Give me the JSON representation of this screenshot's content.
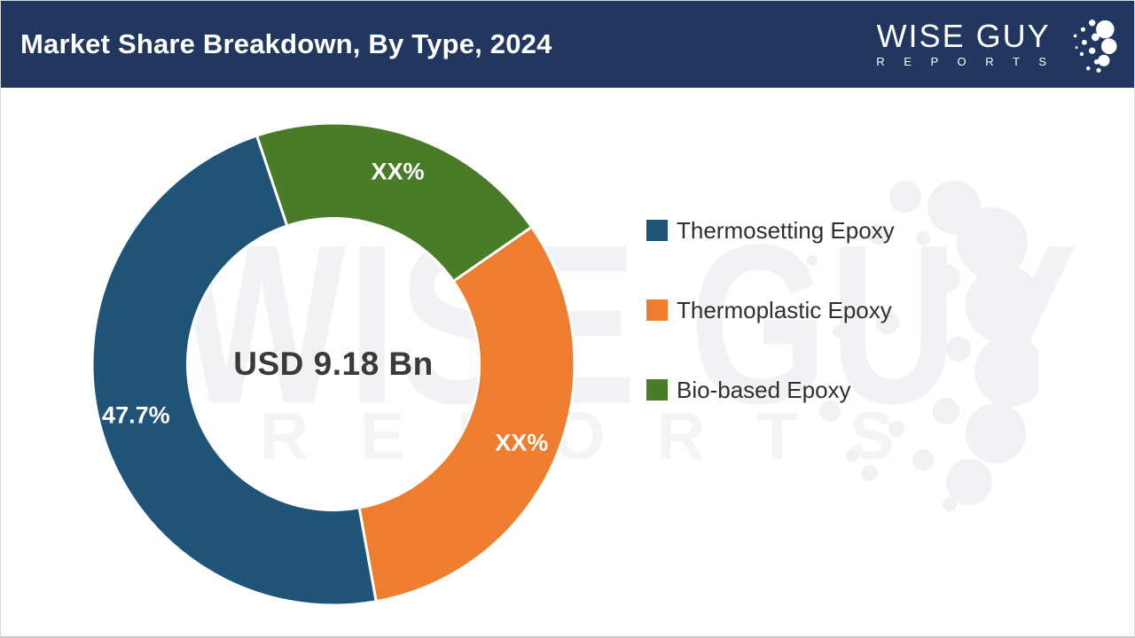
{
  "header": {
    "title": "Market Share Breakdown, By Type, 2024",
    "background_color": "#21375f",
    "logo": {
      "line1": "WISE GUY",
      "line2": "R E P O R T S"
    }
  },
  "watermark": {
    "line1": "WISE GUY",
    "line2": "REPORTS"
  },
  "chart_data": {
    "type": "pie",
    "subtype": "donut",
    "title": "Market Share Breakdown, By Type, 2024",
    "center_label": "USD 9.18 Bn",
    "unit": "percent",
    "series": [
      {
        "name": "Thermosetting Epoxy",
        "value": 47.7,
        "display_label": "47.7%",
        "color": "#1f5378"
      },
      {
        "name": "Thermoplastic Epoxy",
        "value": 31.8,
        "display_label": "XX%",
        "color": "#ee7d2f"
      },
      {
        "name": "Bio-based Epoxy",
        "value": 20.5,
        "display_label": "XX%",
        "color": "#4a7b28"
      }
    ],
    "start_angle_deg_clockwise_from_top": -18.5,
    "winding": "counterclockwise-in-series-order",
    "outer_radius_px": 272,
    "inner_radius_ratio": 0.605,
    "label_radius_ratio": 0.845,
    "separator_color": "#ffffff",
    "legend_position": "right"
  }
}
